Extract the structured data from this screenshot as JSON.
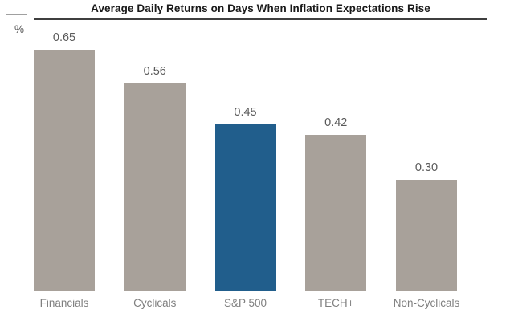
{
  "chart_data": {
    "type": "bar",
    "title": "Average Daily Returns on Days When Inflation Expectations Rise",
    "unit_label": "%",
    "categories": [
      "Financials",
      "Cyclicals",
      "S&P 500",
      "TECH+",
      "Non-Cyclicals"
    ],
    "values": [
      0.65,
      0.56,
      0.45,
      0.42,
      0.3
    ],
    "value_labels": [
      "0.65",
      "0.56",
      "0.45",
      "0.42",
      "0.30"
    ],
    "bar_colors": [
      "#a8a19a",
      "#a8a19a",
      "#215e8c",
      "#a8a19a",
      "#a8a19a"
    ],
    "highlighted_category": "S&P 500",
    "ylim": [
      0,
      0.7
    ],
    "grid": false,
    "legend": false,
    "colors": {
      "default_bar": "#a8a19a",
      "highlight_bar": "#215e8c",
      "baseline": "#cccccc",
      "title_text": "#1a1a1a",
      "value_text": "#595959",
      "category_text": "#7f7f7f"
    }
  }
}
